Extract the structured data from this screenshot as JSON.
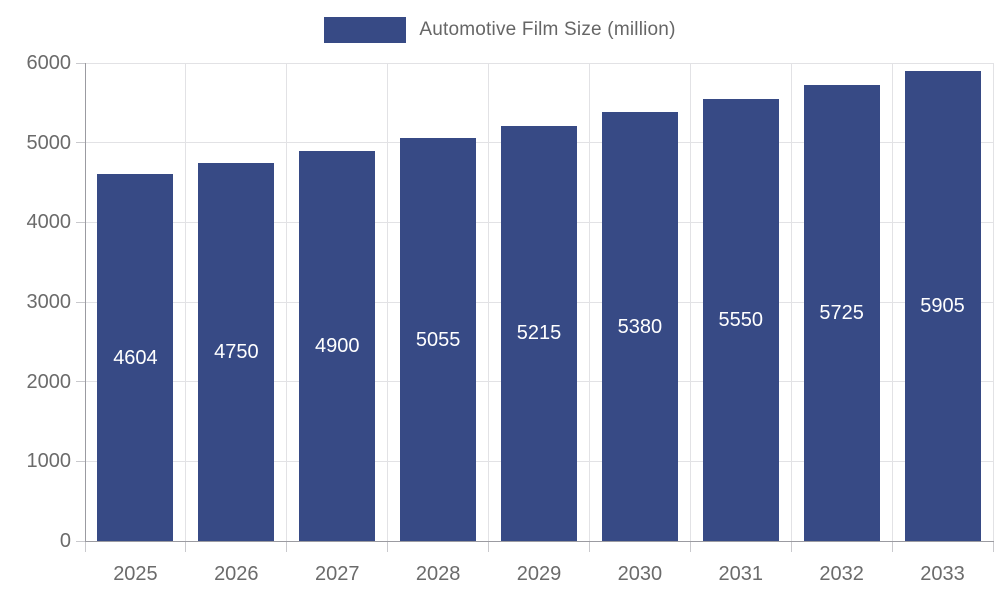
{
  "legend": {
    "label": "Automotive Film Size (million)"
  },
  "chart_data": {
    "type": "bar",
    "title": "",
    "xlabel": "",
    "ylabel": "",
    "categories": [
      "2025",
      "2026",
      "2027",
      "2028",
      "2029",
      "2030",
      "2031",
      "2032",
      "2033"
    ],
    "values": [
      4604,
      4750,
      4900,
      5055,
      5215,
      5380,
      5550,
      5725,
      5905
    ],
    "series_name": "Automotive Film Size (million)",
    "value_labels_inside_bars": true,
    "ylim": [
      0,
      6000
    ],
    "yticks": [
      0,
      1000,
      2000,
      3000,
      4000,
      5000,
      6000
    ],
    "grid": true,
    "legend_position": "top",
    "colors": {
      "bar": "#374a85",
      "value_label": "#ffffff",
      "grid": "#e2e2e5",
      "axis": "#9b9ba1",
      "tick": "#c9c9cd",
      "tick_text": "#6b6b6b",
      "legend_text": "#666666",
      "background": "#ffffff"
    }
  }
}
